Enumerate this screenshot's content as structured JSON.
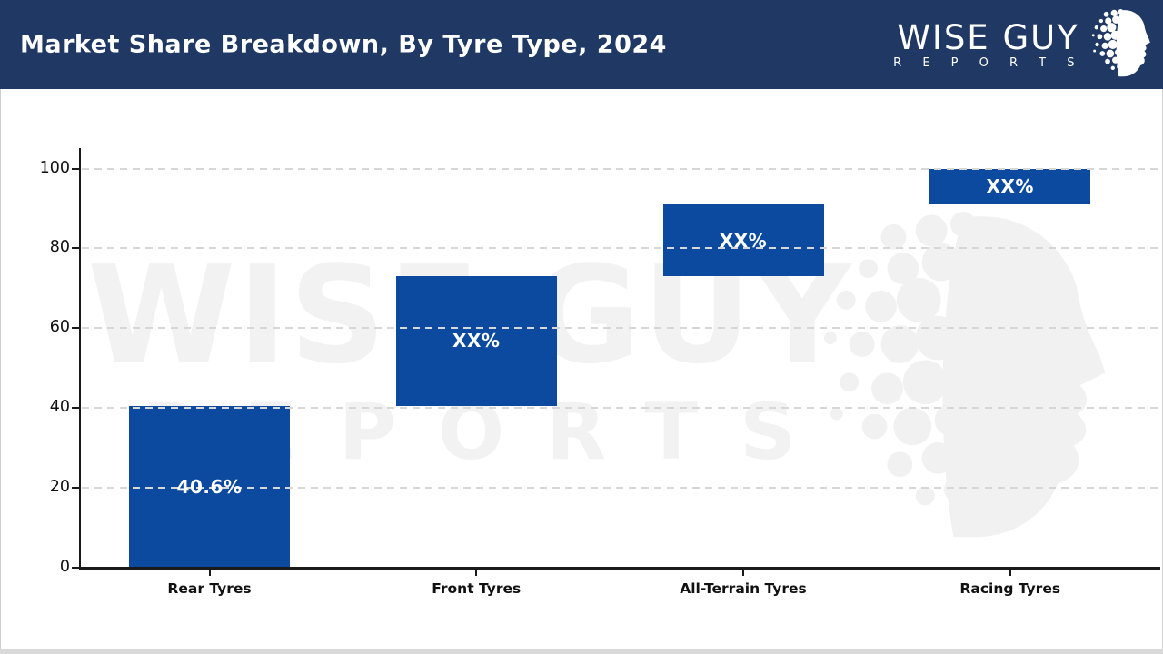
{
  "header": {
    "title": "Market Share Breakdown, By Tyre Type, 2024",
    "background_color": "#1f3864",
    "logo": {
      "line1": "WISE GUY",
      "line2": "R E P O R T S"
    }
  },
  "watermark": {
    "line1": "WISE GUY",
    "line2": "REPORTS"
  },
  "chart_data": {
    "type": "bar",
    "subtype": "waterfall",
    "title": "Market Share Breakdown, By Tyre Type, 2024",
    "categories": [
      "Rear Tyres",
      "Front Tyres",
      "All-Terrain Tyres",
      "Racing Tyres"
    ],
    "segments": [
      {
        "category": "Rear Tyres",
        "start": 0,
        "end": 40.6,
        "label": "40.6%"
      },
      {
        "category": "Front Tyres",
        "start": 40.6,
        "end": 73,
        "label": "XX%"
      },
      {
        "category": "All-Terrain Tyres",
        "start": 73,
        "end": 91,
        "label": "XX%"
      },
      {
        "category": "Racing Tyres",
        "start": 91,
        "end": 100,
        "label": "XX%"
      }
    ],
    "ylim": [
      0,
      100
    ],
    "yticks": [
      0,
      20,
      40,
      60,
      80,
      100
    ],
    "xlabel": "",
    "ylabel": "",
    "grid": "horizontal dashed, drawn over bars",
    "legend": "none",
    "bar_color": "#0b4a9f",
    "bar_label_color": "#ffffff"
  }
}
